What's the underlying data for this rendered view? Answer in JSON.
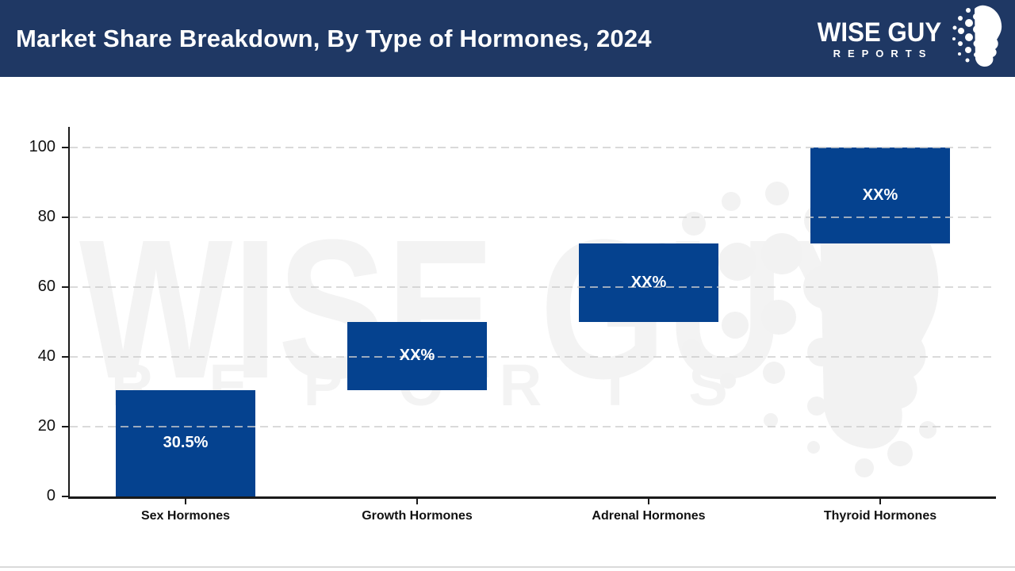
{
  "header": {
    "title": "Market Share Breakdown, By Type of Hormones, 2024",
    "bg_color": "#1f3864",
    "logo": {
      "line1": "WISE GUY",
      "line2": "REPORTS"
    }
  },
  "watermark": {
    "line1": "WISE GUY",
    "line2": "REPORTS"
  },
  "chart_data": {
    "type": "bar",
    "subtype": "waterfall",
    "title": "Market Share Breakdown, By Type of Hormones, 2024",
    "categories": [
      "Sex Hormones",
      "Growth Hormones",
      "Adrenal Hormones",
      "Thyroid Hormones"
    ],
    "segments": [
      {
        "category": "Sex Hormones",
        "start": 0,
        "end": 30.5,
        "value": 30.5,
        "label": "30.5%"
      },
      {
        "category": "Growth Hormones",
        "start": 30.5,
        "end": 50,
        "value": 19.5,
        "label": "XX%"
      },
      {
        "category": "Adrenal Hormones",
        "start": 50,
        "end": 72.5,
        "value": 22.5,
        "label": "XX%"
      },
      {
        "category": "Thyroid Hormones",
        "start": 72.5,
        "end": 100,
        "value": 27.5,
        "label": "XX%"
      }
    ],
    "yticks": [
      0,
      20,
      40,
      60,
      80,
      100
    ],
    "ylim": [
      0,
      105
    ],
    "xlabel": "",
    "ylabel": "",
    "grid": "horizontal-dashed",
    "legend": "none",
    "bar_color": "#05428f",
    "gridline_color": "#d9d9d9",
    "axis_color": "#1a1a1a"
  }
}
